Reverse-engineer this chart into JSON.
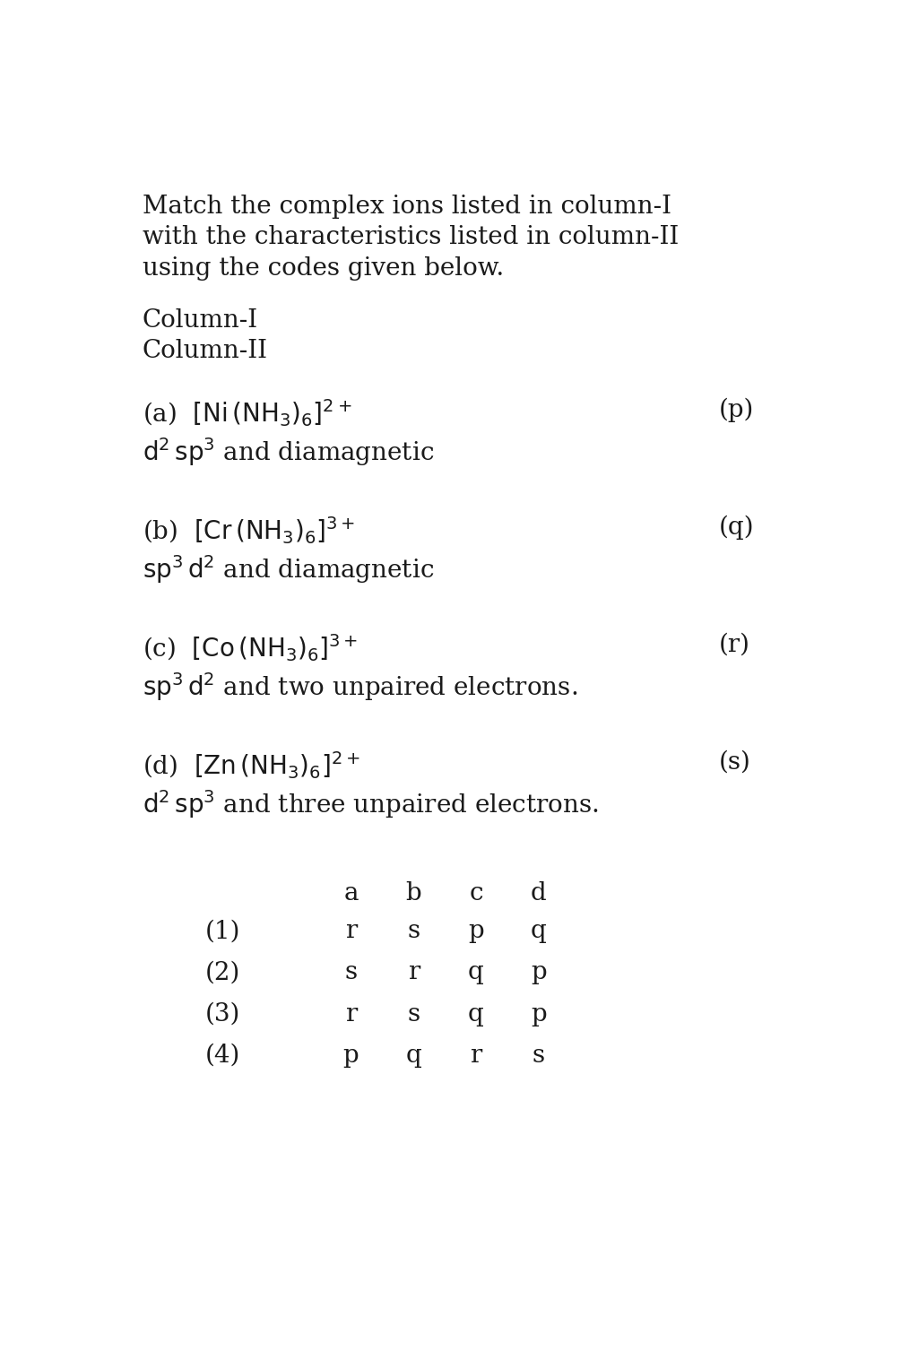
{
  "bg_color": "#ffffff",
  "text_color": "#1a1a1a",
  "title_lines": [
    "Match the complex ions listed in column-I",
    "with the characteristics listed in column-II",
    "using the codes given below."
  ],
  "col1_header": "Column-I",
  "col2_header": "Column-II",
  "items_col1": [
    "(a)  $\\left[\\mathrm{Ni\\,(NH_3)_6}\\right]^{2+}$",
    "(b)  $\\left[\\mathrm{Cr\\,(NH_3)_6}\\right]^{3+}$",
    "(c)  $\\left[\\mathrm{Co\\,(NH_3)_6}\\right]^{3+}$",
    "(d)  $\\left[\\mathrm{Zn\\,(NH_3)_6}\\right]^{2+}$"
  ],
  "items_desc": [
    "$\\mathrm{d^2\\,sp^3}$ and diamagnetic",
    "$\\mathrm{sp^3\\,d^2}$ and diamagnetic",
    "$\\mathrm{sp^3\\,d^2}$ and two unpaired electrons.",
    "$\\mathrm{d^2\\,sp^3}$ and three unpaired electrons."
  ],
  "items_col2": [
    "(p)",
    "(q)",
    "(r)",
    "(s)"
  ],
  "table_col_labels": [
    "a",
    "b",
    "c",
    "d"
  ],
  "table_row_labels": [
    "(1)",
    "(2)",
    "(3)",
    "(4)"
  ],
  "table_values": [
    [
      "r",
      "s",
      "p",
      "q"
    ],
    [
      "s",
      "r",
      "q",
      "p"
    ],
    [
      "r",
      "s",
      "q",
      "p"
    ],
    [
      "p",
      "q",
      "r",
      "s"
    ]
  ],
  "main_fs": 20,
  "title_fs": 20,
  "formula_fs": 20,
  "desc_fs": 20,
  "table_fs": 20
}
